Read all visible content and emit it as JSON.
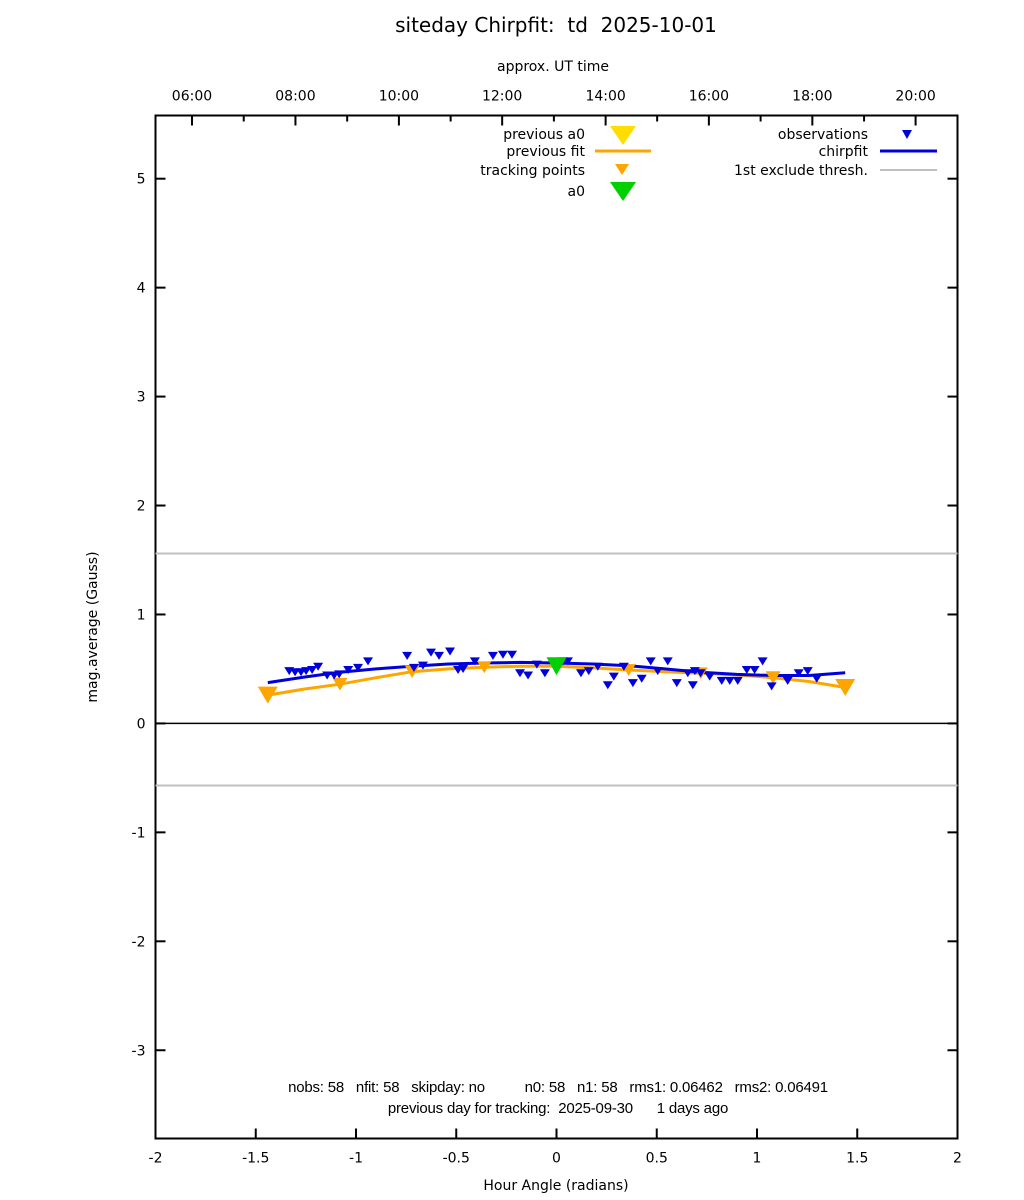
{
  "colors": {
    "blue": "#0000dd",
    "orange": "#ffa500",
    "yellow": "#ffdd00",
    "green": "#00d000",
    "gray": "#c0c0c0",
    "black": "#000000"
  },
  "chart_data": {
    "type": "scatter",
    "title": "siteday Chirpfit:  td  2025-10-01",
    "top_axis": {
      "label": "approx. UT time",
      "major_ticks": [
        {
          "label": "06:00",
          "x": -1.818
        },
        {
          "label": "08:00",
          "x": -1.302
        },
        {
          "label": "10:00",
          "x": -0.786
        },
        {
          "label": "12:00",
          "x": -0.271
        },
        {
          "label": "14:00",
          "x": 0.245
        },
        {
          "label": "16:00",
          "x": 0.76
        },
        {
          "label": "18:00",
          "x": 1.276
        },
        {
          "label": "20:00",
          "x": 1.791
        }
      ],
      "minor_ticks_x": [
        -1.56,
        -1.044,
        -0.528,
        -0.013,
        0.502,
        1.018,
        1.534
      ]
    },
    "x_axis": {
      "label": "Hour Angle (radians)",
      "lim": [
        -2,
        2
      ],
      "ticks": [
        {
          "label": "-2",
          "x": -2
        },
        {
          "label": "-1.5",
          "x": -1.5
        },
        {
          "label": "-1",
          "x": -1
        },
        {
          "label": "-0.5",
          "x": -0.5
        },
        {
          "label": "0",
          "x": 0
        },
        {
          "label": "0.5",
          "x": 0.5
        },
        {
          "label": "1",
          "x": 1
        },
        {
          "label": "1.5",
          "x": 1.5
        },
        {
          "label": "2",
          "x": 2
        }
      ]
    },
    "y_axis": {
      "label": "mag.average (Gauss)",
      "lim": [
        -3.81,
        5.58
      ],
      "ticks": [
        {
          "label": "5",
          "y": 5
        },
        {
          "label": "4",
          "y": 4
        },
        {
          "label": "3",
          "y": 3
        },
        {
          "label": "2",
          "y": 2
        },
        {
          "label": "1",
          "y": 1
        },
        {
          "label": "0",
          "y": 0
        },
        {
          "label": "-1",
          "y": -1
        },
        {
          "label": "-2",
          "y": -2
        },
        {
          "label": "-3",
          "y": -3
        }
      ]
    },
    "zero_line_y": 0,
    "exclude_thresholds_y": [
      1.56,
      -0.57
    ],
    "series": {
      "observations": [
        [
          -1.333,
          0.48
        ],
        [
          -1.304,
          0.47
        ],
        [
          -1.274,
          0.47
        ],
        [
          -1.249,
          0.48
        ],
        [
          -1.219,
          0.49
        ],
        [
          -1.189,
          0.52
        ],
        [
          -1.144,
          0.44
        ],
        [
          -1.109,
          0.44
        ],
        [
          -1.084,
          0.45
        ],
        [
          -1.039,
          0.49
        ],
        [
          -0.99,
          0.51
        ],
        [
          -0.94,
          0.57
        ],
        [
          -0.745,
          0.62
        ],
        [
          -0.711,
          0.51
        ],
        [
          -0.666,
          0.53
        ],
        [
          -0.626,
          0.65
        ],
        [
          -0.586,
          0.62
        ],
        [
          -0.531,
          0.66
        ],
        [
          -0.491,
          0.49
        ],
        [
          -0.466,
          0.5
        ],
        [
          -0.407,
          0.57
        ],
        [
          -0.317,
          0.62
        ],
        [
          -0.267,
          0.63
        ],
        [
          -0.222,
          0.63
        ],
        [
          -0.182,
          0.46
        ],
        [
          -0.142,
          0.44
        ],
        [
          -0.098,
          0.54
        ],
        [
          -0.058,
          0.46
        ],
        [
          0.032,
          0.57
        ],
        [
          0.057,
          0.57
        ],
        [
          0.122,
          0.46
        ],
        [
          0.161,
          0.48
        ],
        [
          0.206,
          0.52
        ],
        [
          0.256,
          0.35
        ],
        [
          0.286,
          0.43
        ],
        [
          0.336,
          0.52
        ],
        [
          0.381,
          0.37
        ],
        [
          0.425,
          0.41
        ],
        [
          0.47,
          0.57
        ],
        [
          0.505,
          0.48
        ],
        [
          0.555,
          0.57
        ],
        [
          0.6,
          0.37
        ],
        [
          0.655,
          0.46
        ],
        [
          0.68,
          0.35
        ],
        [
          0.69,
          0.48
        ],
        [
          0.719,
          0.46
        ],
        [
          0.764,
          0.43
        ],
        [
          0.824,
          0.39
        ],
        [
          0.864,
          0.39
        ],
        [
          0.904,
          0.39
        ],
        [
          0.949,
          0.49
        ],
        [
          0.988,
          0.49
        ],
        [
          1.028,
          0.57
        ],
        [
          1.073,
          0.34
        ],
        [
          1.153,
          0.39
        ],
        [
          1.208,
          0.46
        ],
        [
          1.253,
          0.48
        ],
        [
          1.298,
          0.41
        ]
      ],
      "chirpfit": [
        [
          -1.44,
          0.375
        ],
        [
          -1.26,
          0.425
        ],
        [
          -1.08,
          0.47
        ],
        [
          -0.9,
          0.5
        ],
        [
          -0.72,
          0.525
        ],
        [
          -0.54,
          0.545
        ],
        [
          -0.36,
          0.555
        ],
        [
          -0.18,
          0.56
        ],
        [
          0,
          0.555
        ],
        [
          0.18,
          0.545
        ],
        [
          0.36,
          0.53
        ],
        [
          0.54,
          0.5
        ],
        [
          0.72,
          0.47
        ],
        [
          0.9,
          0.45
        ],
        [
          1.08,
          0.44
        ],
        [
          1.26,
          0.44
        ],
        [
          1.44,
          0.465
        ]
      ],
      "previous_fit": [
        [
          -1.44,
          0.26
        ],
        [
          -1.26,
          0.315
        ],
        [
          -1.08,
          0.36
        ],
        [
          -0.9,
          0.42
        ],
        [
          -0.72,
          0.475
        ],
        [
          -0.54,
          0.5
        ],
        [
          -0.36,
          0.515
        ],
        [
          -0.18,
          0.525
        ],
        [
          0,
          0.525
        ],
        [
          0.18,
          0.51
        ],
        [
          0.36,
          0.49
        ],
        [
          0.54,
          0.475
        ],
        [
          0.72,
          0.46
        ],
        [
          0.9,
          0.445
        ],
        [
          1.08,
          0.42
        ],
        [
          1.26,
          0.385
        ],
        [
          1.44,
          0.33
        ]
      ],
      "tracking_points": [
        {
          "x": -1.44,
          "y": 0.26,
          "s": 20
        },
        {
          "x": -1.08,
          "y": 0.36,
          "s": 15
        },
        {
          "x": -0.72,
          "y": 0.475,
          "s": 15
        },
        {
          "x": -0.36,
          "y": 0.515,
          "s": 14
        },
        {
          "x": 0.36,
          "y": 0.49,
          "s": 14
        },
        {
          "x": 0.72,
          "y": 0.46,
          "s": 14
        },
        {
          "x": 1.08,
          "y": 0.42,
          "s": 15
        },
        {
          "x": 1.44,
          "y": 0.33,
          "s": 20
        }
      ],
      "a0": {
        "x": 0,
        "y": 0.525,
        "s": 20
      }
    },
    "legend": {
      "position": "top-inside",
      "left": [
        {
          "label": "previous a0",
          "marker": "triangle",
          "color": "yellow"
        },
        {
          "label": "previous fit",
          "marker": "line",
          "color": "orange"
        },
        {
          "label": "tracking points",
          "marker": "triangle",
          "color": "orange"
        },
        {
          "label": "a0",
          "marker": "triangle",
          "color": "green"
        }
      ],
      "right": [
        {
          "label": "observations",
          "marker": "triangle",
          "color": "blue"
        },
        {
          "label": "chirpfit",
          "marker": "line",
          "color": "blue"
        },
        {
          "label": "1st exclude thresh.",
          "marker": "line",
          "color": "gray"
        }
      ]
    },
    "footer": {
      "line1_parts": [
        "nobs: 58",
        "nfit: 58",
        "skipday: no",
        "n0: 58",
        "n1: 58",
        "rms1: 0.06462",
        "rms2: 0.06491"
      ],
      "line2_parts": [
        "previous day for tracking:",
        "2025-09-30",
        "1 days ago"
      ]
    }
  }
}
